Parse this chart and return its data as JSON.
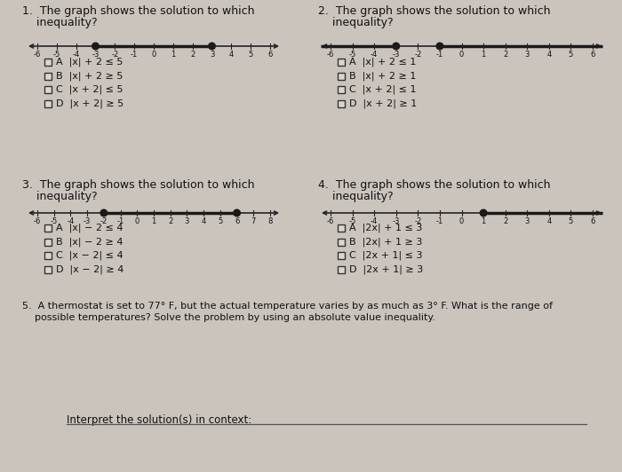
{
  "bg_color": "#cac4bc",
  "text_color": "#111111",
  "line_color": "#222222",
  "dot_color": "#1a1a1a",
  "q1_choices": [
    "A  |x| + 2 ≤ 5",
    "B  |x| + 2 ≥ 5",
    "C  |x + 2| ≤ 5",
    "D  |x + 2| ≥ 5"
  ],
  "q2_choices": [
    "A  |x| + 2 ≤ 1",
    "B  |x| + 2 ≥ 1",
    "C  |x + 2| ≤ 1",
    "D  |x + 2| ≥ 1"
  ],
  "q3_choices": [
    "A  |x| − 2 ≤ 4",
    "B  |x| − 2 ≥ 4",
    "C  |x − 2| ≤ 4",
    "D  |x − 2| ≥ 4"
  ],
  "q4_choices": [
    "A  |2x| + 1 ≤ 3",
    "B  |2x| + 1 ≥ 3",
    "C  |2x + 1| ≤ 3",
    "D  |2x + 1| ≥ 3"
  ],
  "q5_line1": "5.  A thermostat is set to 77° F, but the actual temperature varies by as much as 3° F. What is the range of",
  "q5_line2": "    possible temperatures? Solve the problem by using an absolute value inequality.",
  "interpret_text": "Interpret the solution(s) in context:"
}
